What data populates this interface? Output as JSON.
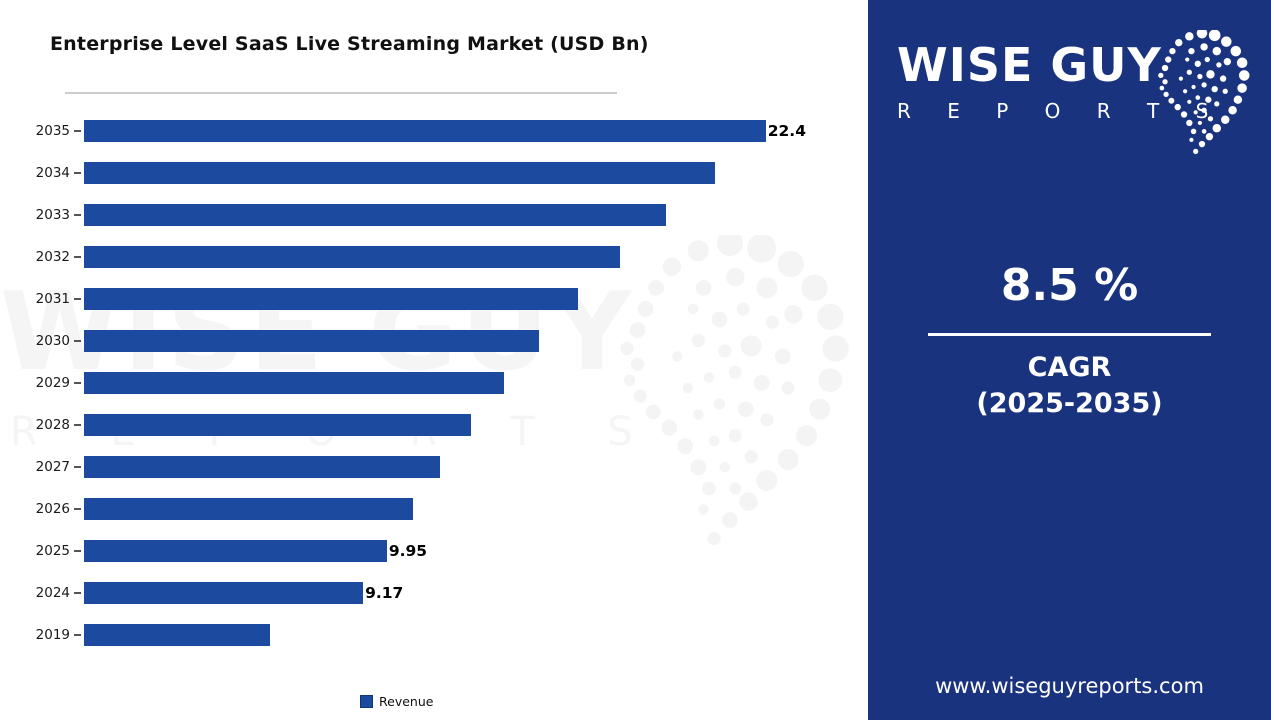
{
  "chart": {
    "title": "Enterprise Level SaaS Live Streaming Market (USD Bn)",
    "legend": {
      "label": "Revenue",
      "color": "#1b4a9e"
    }
  },
  "chart_data": {
    "type": "bar",
    "orientation": "horizontal",
    "title": "Enterprise Level SaaS Live Streaming Market (USD Bn)",
    "categories": [
      "2035",
      "2034",
      "2033",
      "2032",
      "2031",
      "2030",
      "2029",
      "2028",
      "2027",
      "2026",
      "2025",
      "2024",
      "2019"
    ],
    "values": [
      22.4,
      20.73,
      19.11,
      17.61,
      16.23,
      14.96,
      13.79,
      12.71,
      11.71,
      10.8,
      9.95,
      9.17,
      6.1
    ],
    "data_labels": [
      "22.4",
      "",
      "",
      "",
      "",
      "",
      "",
      "",
      "",
      "",
      "9.95",
      "9.17",
      ""
    ],
    "xlim": [
      0,
      23
    ],
    "xlabel": "",
    "ylabel": "",
    "grid": false,
    "legend_entries": [
      "Revenue"
    ],
    "legend_position": "bottom",
    "bar_color": "#1b4a9e"
  },
  "watermark": {
    "line1": "WISE GUY",
    "line2": "R E P O R T S"
  },
  "sidebar": {
    "bg_color": "#1a337e",
    "logo_title": "WISE GUY",
    "logo_subtitle": "R E P O R T S",
    "cagr_value": "8.5 %",
    "cagr_line1": "CAGR",
    "cagr_line2": "(2025-2035)",
    "website": "www.wiseguyreports.com"
  }
}
